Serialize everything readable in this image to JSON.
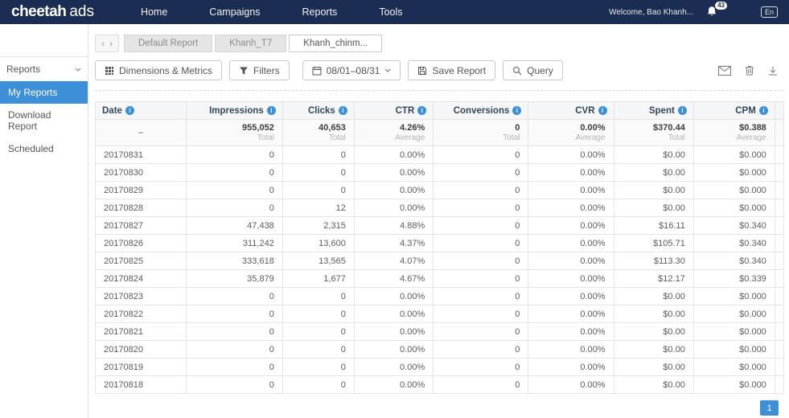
{
  "colors": {
    "navbar_bg": "#1b2d52",
    "accent_blue": "#3d8fd8",
    "header_text": "#33475c"
  },
  "icons": {
    "tab_scroll_left": "‹",
    "tab_scroll_right": "›",
    "info": "i"
  },
  "navbar": {
    "brand_bold": "cheetah",
    "brand_light": "ads",
    "items": [
      {
        "label": "Home"
      },
      {
        "label": "Campaigns"
      },
      {
        "label": "Reports"
      },
      {
        "label": "Tools"
      }
    ],
    "welcome_label": "Welcome,",
    "username": "Bao Khanh...",
    "notification_count": "43",
    "language": "En"
  },
  "sidebar": {
    "section_label": "Reports",
    "items": [
      {
        "label": "My Reports",
        "active": true
      },
      {
        "label": "Download Report",
        "active": false
      },
      {
        "label": "Scheduled",
        "active": false
      }
    ]
  },
  "tabs": [
    {
      "label": "Default Report",
      "active": false
    },
    {
      "label": "Khanh_T7",
      "active": false
    },
    {
      "label": "Khanh_chinm...",
      "active": true
    }
  ],
  "toolbar": {
    "dimensions_metrics_label": "Dimensions & Metrics",
    "filters_label": "Filters",
    "date_range_label": "08/01–08/31",
    "save_report_label": "Save Report",
    "query_label": "Query"
  },
  "table": {
    "columns": [
      "Date",
      "Impressions",
      "Clicks",
      "CTR",
      "Conversions",
      "CVR",
      "Spent",
      "CPM"
    ],
    "summary": {
      "date": "–",
      "values": [
        "955,052",
        "40,653",
        "4.26%",
        "0",
        "0.00%",
        "$370.44",
        "$0.388"
      ],
      "sublabels": [
        "Total",
        "Total",
        "Average",
        "Total",
        "Average",
        "Total",
        "Average"
      ]
    },
    "rows": [
      [
        "20170831",
        "0",
        "0",
        "0.00%",
        "0",
        "0.00%",
        "$0.00",
        "$0.000"
      ],
      [
        "20170830",
        "0",
        "0",
        "0.00%",
        "0",
        "0.00%",
        "$0.00",
        "$0.000"
      ],
      [
        "20170829",
        "0",
        "0",
        "0.00%",
        "0",
        "0.00%",
        "$0.00",
        "$0.000"
      ],
      [
        "20170828",
        "0",
        "12",
        "0.00%",
        "0",
        "0.00%",
        "$0.00",
        "$0.000"
      ],
      [
        "20170827",
        "47,438",
        "2,315",
        "4.88%",
        "0",
        "0.00%",
        "$16.11",
        "$0.340"
      ],
      [
        "20170826",
        "311,242",
        "13,600",
        "4.37%",
        "0",
        "0.00%",
        "$105.71",
        "$0.340"
      ],
      [
        "20170825",
        "333,618",
        "13,565",
        "4.07%",
        "0",
        "0.00%",
        "$113.30",
        "$0.340"
      ],
      [
        "20170824",
        "35,879",
        "1,677",
        "4.67%",
        "0",
        "0.00%",
        "$12.17",
        "$0.339"
      ],
      [
        "20170823",
        "0",
        "0",
        "0.00%",
        "0",
        "0.00%",
        "$0.00",
        "$0.000"
      ],
      [
        "20170822",
        "0",
        "0",
        "0.00%",
        "0",
        "0.00%",
        "$0.00",
        "$0.000"
      ],
      [
        "20170821",
        "0",
        "0",
        "0.00%",
        "0",
        "0.00%",
        "$0.00",
        "$0.000"
      ],
      [
        "20170820",
        "0",
        "0",
        "0.00%",
        "0",
        "0.00%",
        "$0.00",
        "$0.000"
      ],
      [
        "20170819",
        "0",
        "0",
        "0.00%",
        "0",
        "0.00%",
        "$0.00",
        "$0.000"
      ],
      [
        "20170818",
        "0",
        "0",
        "0.00%",
        "0",
        "0.00%",
        "$0.00",
        "$0.000"
      ]
    ]
  },
  "pagination": {
    "page": "1"
  }
}
